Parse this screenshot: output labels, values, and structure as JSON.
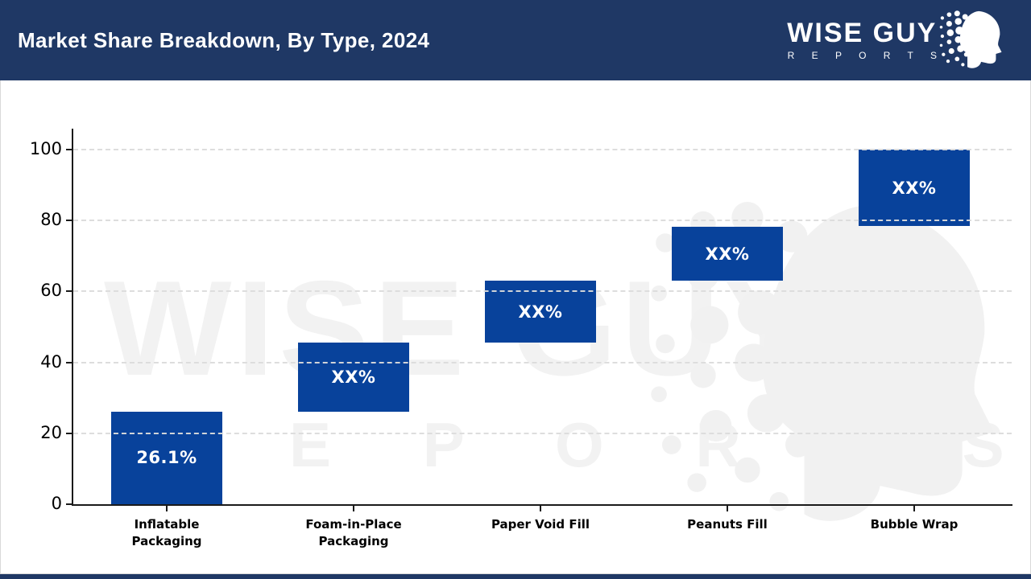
{
  "header": {
    "title": "Market Share Breakdown, By Type, 2024",
    "logo_line1": "WISE GUY",
    "logo_line2": "R E P O R T S"
  },
  "watermark": {
    "line1": "WISE GUY",
    "line2": "R E P O R T S"
  },
  "chart_data": {
    "type": "bar",
    "subtype": "floating-waterfall",
    "title": "Market Share Breakdown, By Type, 2024",
    "xlabel": "",
    "ylabel": "",
    "ylim": [
      0,
      105
    ],
    "yticks": [
      0,
      20,
      40,
      60,
      80,
      100
    ],
    "grid": "horizontal-dashed",
    "legend": "none",
    "bar_color": "#08429b",
    "value_label_color": "#ffffff",
    "bars": [
      {
        "category": "Inflatable\nPackaging",
        "start": 0,
        "end": 26.1,
        "label": "26.1%"
      },
      {
        "category": "Foam-in-Place\nPackaging",
        "start": 26.1,
        "end": 45.6,
        "label": "XX%"
      },
      {
        "category": "Paper Void Fill",
        "start": 45.6,
        "end": 63.0,
        "label": "XX%"
      },
      {
        "category": "Peanuts Fill",
        "start": 63.0,
        "end": 78.2,
        "label": "XX%"
      },
      {
        "category": "Bubble Wrap",
        "start": 78.4,
        "end": 100,
        "label": "XX%"
      }
    ]
  },
  "colors": {
    "header_bg": "#1f3865",
    "footer_bg": "#1f3865",
    "bar": "#08429b",
    "gridline": "#dcdcdc",
    "axis": "#1a1a1a",
    "watermark": "#f2f2f2"
  }
}
